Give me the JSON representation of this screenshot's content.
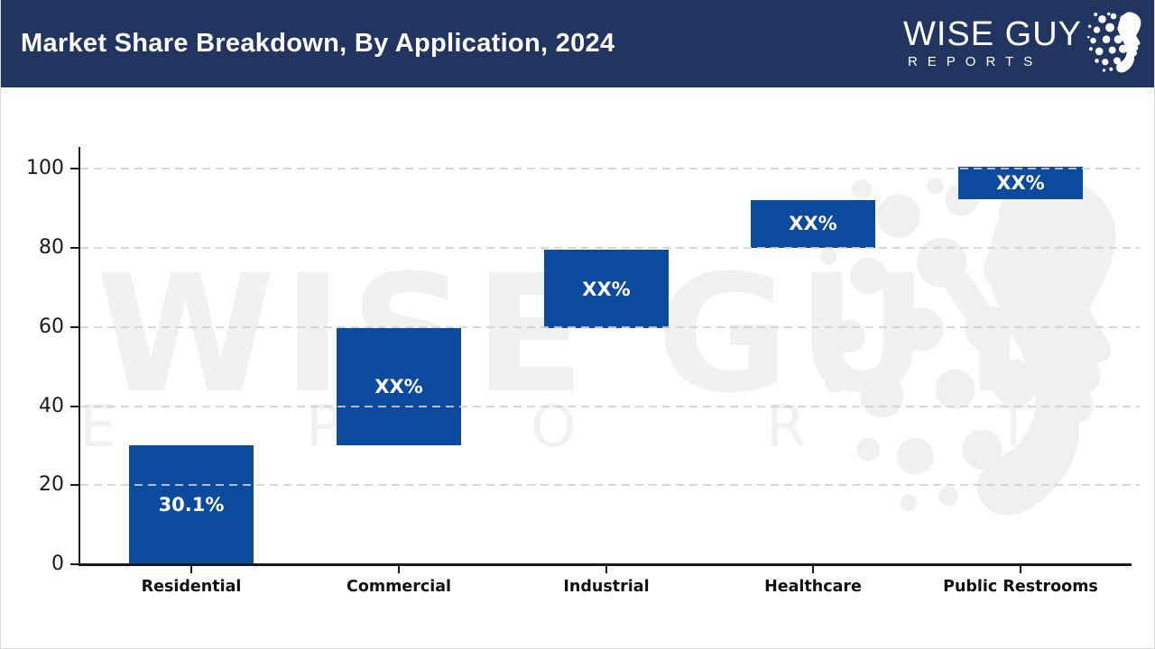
{
  "header": {
    "title": "Market Share Breakdown, By Application, 2024",
    "bg_color": "#223560",
    "logo": {
      "line1": "WISE GUY",
      "line2": "REPORTS"
    }
  },
  "watermark": {
    "line1": "WISE GUY",
    "line2": "R E P O R T S"
  },
  "chart_data": {
    "type": "bar",
    "subtype": "waterfall",
    "title": "Market Share Breakdown, By Application, 2024",
    "categories": [
      "Residential",
      "Commercial",
      "Industrial",
      "Healthcare",
      "Public Restrooms"
    ],
    "bars": [
      {
        "category": "Residential",
        "start": 0,
        "end": 30.1,
        "label": "30.1%"
      },
      {
        "category": "Commercial",
        "start": 30.1,
        "end": 59.7,
        "label": "XX%"
      },
      {
        "category": "Industrial",
        "start": 59.7,
        "end": 79.5,
        "label": "XX%"
      },
      {
        "category": "Healthcare",
        "start": 80.0,
        "end": 92.1,
        "label": "XX%"
      },
      {
        "category": "Public Restrooms",
        "start": 92.3,
        "end": 100.4,
        "label": "XX%"
      }
    ],
    "xlabel": "",
    "ylabel": "",
    "y_ticks": [
      0,
      20,
      40,
      60,
      80,
      100
    ],
    "ylim": [
      0,
      105
    ],
    "grid": "horizontal dashed, drawn over bars",
    "legend": "none",
    "colors": {
      "bar": "#0c4a9e",
      "bar_label_text": "#ffffff",
      "axis": "#1a1a1a",
      "gridline": "#d0d0d0",
      "watermark": "#f1f1f1"
    }
  }
}
